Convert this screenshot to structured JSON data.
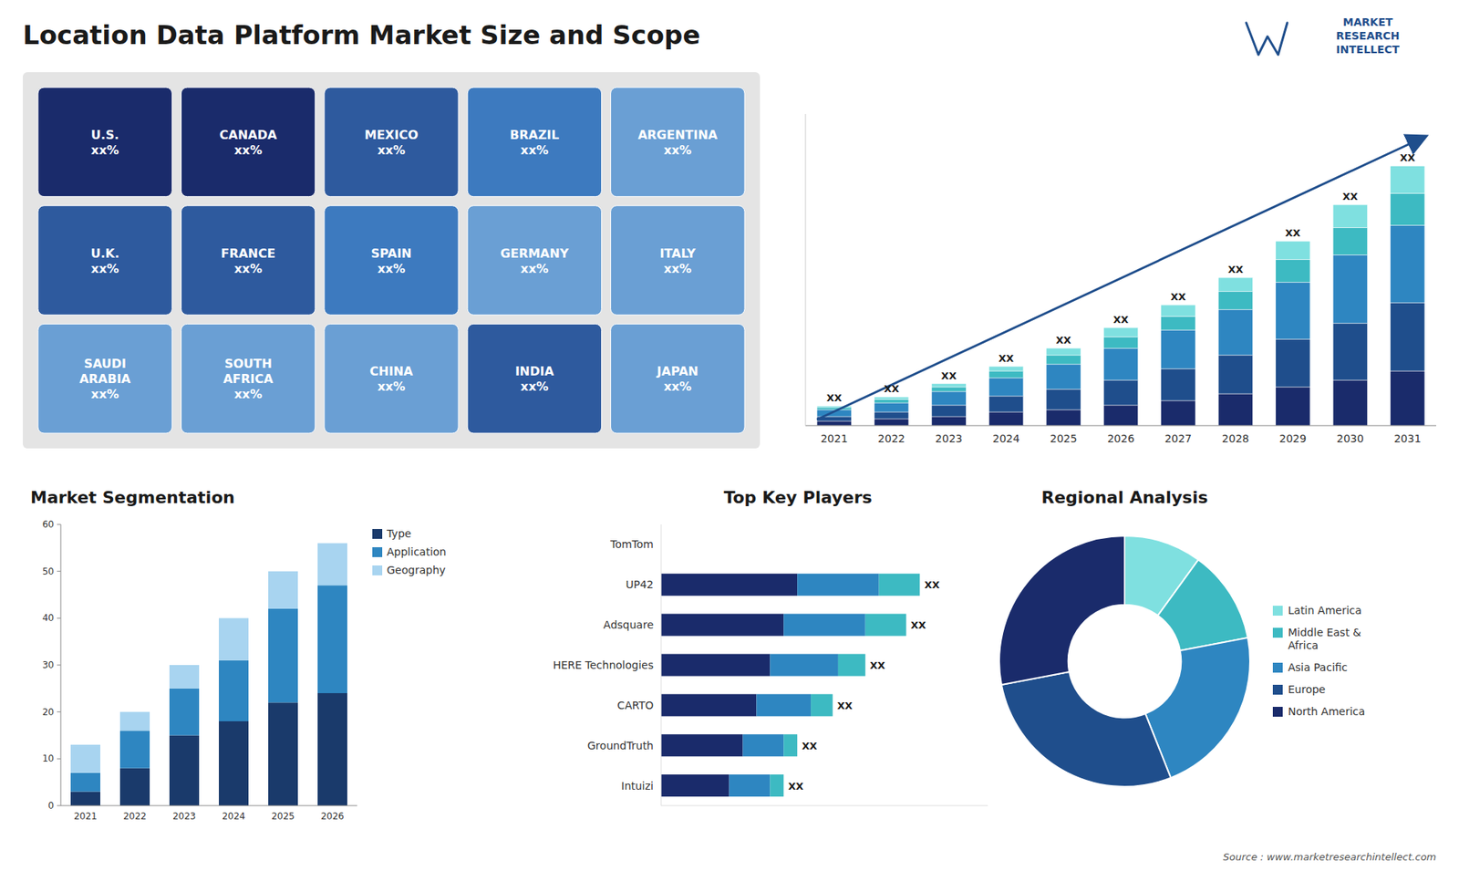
{
  "chart_data": [
    {
      "type": "map",
      "title": "Location Data Platform Market Size and Scope",
      "categories": [
        "U.S.\nxx%",
        "CANADA\nxx%",
        "MEXICO\nxx%",
        "BRAZIL\nxx%",
        "ARGENTINA\nxx%",
        "U.K.\nxx%",
        "FRANCE\nxx%",
        "SPAIN\nxx%",
        "GERMANY\nxx%",
        "ITALY\nxx%",
        "SAUDI\nARABIA\nxx%",
        "SOUTH\nAFRICA\nxx%",
        "CHINA\nxx%",
        "INDIA\nxx%",
        "JAPAN\nxx%"
      ],
      "colors": [
        "#1a2b6b",
        "#1a2b6b",
        "#2e5a9e",
        "#3d7abf",
        "#6a9fd4",
        "#2e5a9e",
        "#2e5a9e",
        "#3d7abf",
        "#6a9fd4",
        "#6a9fd4",
        "#6a9fd4",
        "#6a9fd4",
        "#6a9fd4",
        "#2e5a9e",
        "#6a9fd4"
      ],
      "annotations": [
        "MARKET\nRESEARCH\nINTELLECT",
        "Source : www.marketresearchintellect.com"
      ]
    },
    {
      "type": "bar",
      "stacked": true,
      "categories": [
        "2021",
        "2022",
        "2023",
        "2024",
        "2025",
        "2026",
        "2027",
        "2028",
        "2029",
        "2030",
        "2031"
      ],
      "series": [
        {
          "color": "#1a2b6b",
          "values": [
            1,
            1.5,
            2,
            3,
            3.5,
            4.5,
            5.5,
            7,
            8.5,
            10,
            12
          ]
        },
        {
          "color": "#1f4e8c",
          "values": [
            1,
            1.5,
            2.5,
            3.5,
            4.5,
            5.5,
            7,
            8.5,
            10.5,
            12.5,
            15
          ]
        },
        {
          "color": "#2e86c1",
          "values": [
            1.5,
            2,
            3,
            4,
            5.5,
            7,
            8.5,
            10,
            12.5,
            15,
            17
          ]
        },
        {
          "color": "#3dbac2",
          "values": [
            0.5,
            0.8,
            1,
            1.5,
            2,
            2.5,
            3,
            4,
            5,
            6,
            7
          ]
        },
        {
          "color": "#7fe0e0",
          "values": [
            0.3,
            0.5,
            0.7,
            1,
            1.5,
            2,
            2.5,
            3,
            4,
            5,
            6
          ]
        }
      ],
      "ylim": [
        0,
        68.4
      ],
      "tick_labels": "x",
      "annotations": [
        "XX",
        "XX",
        "XX",
        "XX",
        "XX",
        "XX",
        "XX",
        "XX",
        "XX",
        "XX",
        "XX"
      ]
    },
    {
      "type": "bar",
      "title": "Market Segmentation",
      "stacked": true,
      "categories": [
        "2021",
        "2022",
        "2023",
        "2024",
        "2025",
        "2026"
      ],
      "series": [
        {
          "name": "Type",
          "color": "#1a3a6b",
          "values": [
            3,
            8,
            15,
            18,
            22,
            24
          ]
        },
        {
          "name": "Application",
          "color": "#2e86c1",
          "values": [
            4,
            8,
            10,
            13,
            20,
            23
          ]
        },
        {
          "name": "Geography",
          "color": "#a8d4f0",
          "values": [
            6,
            4,
            5,
            9,
            8,
            9
          ]
        }
      ],
      "ylim": [
        0,
        60
      ],
      "yticks": [
        0,
        10,
        20,
        30,
        40,
        50,
        60
      ],
      "legend": "right"
    },
    {
      "type": "bar",
      "title": "Top Key Players",
      "orientation": "horizontal",
      "stacked": true,
      "categories": [
        "TomTom",
        "UP42",
        "Adsquare",
        "HERE Technologies",
        "CARTO",
        "GroundTruth",
        "Intuizi"
      ],
      "series": [
        {
          "color": "#1a2b6b",
          "values": [
            0,
            5,
            4.5,
            4,
            3.5,
            3,
            2.5
          ]
        },
        {
          "color": "#2e86c1",
          "values": [
            0,
            3,
            3,
            2.5,
            2,
            1.5,
            1.5
          ]
        },
        {
          "color": "#3dbac2",
          "values": [
            0,
            1.5,
            1.5,
            1,
            0.8,
            0.5,
            0.5
          ]
        }
      ],
      "xlim": [
        0,
        12
      ],
      "tick_labels": "y",
      "annotations": [
        null,
        "XX",
        "XX",
        "XX",
        "XX",
        "XX",
        "XX"
      ]
    },
    {
      "type": "donut",
      "title": "Regional Analysis",
      "categories": [
        "Latin America",
        "Middle East &\nAfrica",
        "Asia Pacific",
        "Europe",
        "North America"
      ],
      "values": [
        10,
        12,
        22,
        28,
        28
      ],
      "colors": [
        "#7fe0e0",
        "#3dbac2",
        "#2e86c1",
        "#1f4e8c",
        "#1a2b6b"
      ],
      "legend": "right"
    }
  ]
}
